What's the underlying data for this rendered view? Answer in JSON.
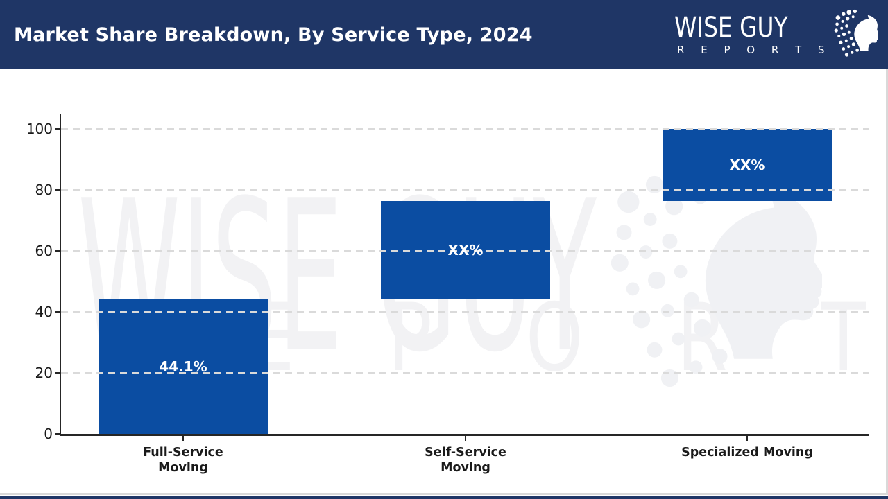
{
  "header": {
    "title": "Market Share Breakdown, By Service Type, 2024",
    "bg_color": "#1f3666",
    "logo_line1": "WISE GUY",
    "logo_line2": "R E P O R T S"
  },
  "watermark": {
    "line1": "WISE GUY",
    "line2": "R E P O R T S"
  },
  "chart_data": {
    "type": "bar",
    "subtype": "floating-waterfall",
    "title": "Market Share Breakdown, By Service Type, 2024",
    "categories": [
      "Full-Service\nMoving",
      "Self-Service\nMoving",
      "Specialized Moving"
    ],
    "segments": [
      {
        "category": "Full-Service Moving",
        "start": 0,
        "end": 44.1,
        "label": "44.1%"
      },
      {
        "category": "Self-Service Moving",
        "start": 44.1,
        "end": 76.4,
        "label": "XX%"
      },
      {
        "category": "Specialized Moving",
        "start": 76.4,
        "end": 100,
        "label": "XX%"
      }
    ],
    "yticks": [
      0,
      20,
      40,
      60,
      80,
      100
    ],
    "ylim": [
      0,
      104.5
    ],
    "xlabel": "",
    "ylabel": "",
    "grid": "dashed-horizontal",
    "legend": "none",
    "bar_color": "#0b4da2",
    "bar_label_color": "#ffffff",
    "axis_color": "#262626",
    "gridline_color": "#dadada"
  },
  "colors": {
    "header_bg": "#1f3666",
    "footer_bg": "#1f3666",
    "watermark": "#f2f2f4",
    "frame_border": "#d9d9d9"
  }
}
